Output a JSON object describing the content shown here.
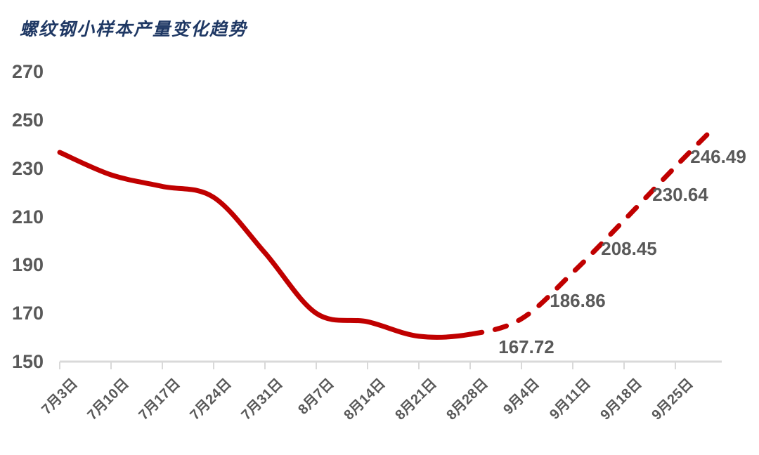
{
  "chart_data": {
    "type": "line",
    "title": "螺纹钢小样本产量变化趋势",
    "title_color": "#1f3864",
    "line_color": "#c00000",
    "text_color": "#595959",
    "axis_color": "#d9d9d9",
    "grid": "off",
    "legend": "none",
    "x_tick_labels": [
      "7月3日",
      "7月10日",
      "7月17日",
      "7月24日",
      "7月31日",
      "8月7日",
      "8月14日",
      "8月21日",
      "8月28日",
      "9月4日",
      "9月11日",
      "9月18日",
      "9月25日"
    ],
    "y_axis": {
      "min": 150,
      "max": 270,
      "step": 20,
      "ticks": [
        150,
        170,
        190,
        210,
        230,
        250,
        270
      ]
    },
    "series": [
      {
        "name": "solid-segment",
        "style": "solid",
        "points": [
          {
            "x_index": 0,
            "value": 236.6
          },
          {
            "x_index": 1,
            "value": 227.3
          },
          {
            "x_index": 2,
            "value": 222.5
          },
          {
            "x_index": 3,
            "value": 218.0
          },
          {
            "x_index": 4,
            "value": 195.0
          },
          {
            "x_index": 5,
            "value": 170.0
          },
          {
            "x_index": 6,
            "value": 166.5
          },
          {
            "x_index": 7,
            "value": 160.5
          },
          {
            "x_index": 8,
            "value": 161.3
          }
        ]
      },
      {
        "name": "dashed-segment",
        "style": "dashed",
        "points": [
          {
            "x_index": 8,
            "value": 161.3
          },
          {
            "x_index": 9,
            "value": 167.72
          },
          {
            "x_index": 10,
            "value": 186.86
          },
          {
            "x_index": 11,
            "value": 208.45
          },
          {
            "x_index": 12,
            "value": 230.64
          },
          {
            "x_index": 12.74,
            "value": 246.49
          }
        ]
      }
    ],
    "data_labels": [
      {
        "x_index": 9,
        "text": "167.72"
      },
      {
        "x_index": 10,
        "text": "186.86"
      },
      {
        "x_index": 11,
        "text": "208.45"
      },
      {
        "x_index": 12,
        "text": "230.64"
      },
      {
        "x_index": 12.74,
        "text": "246.49"
      }
    ]
  }
}
